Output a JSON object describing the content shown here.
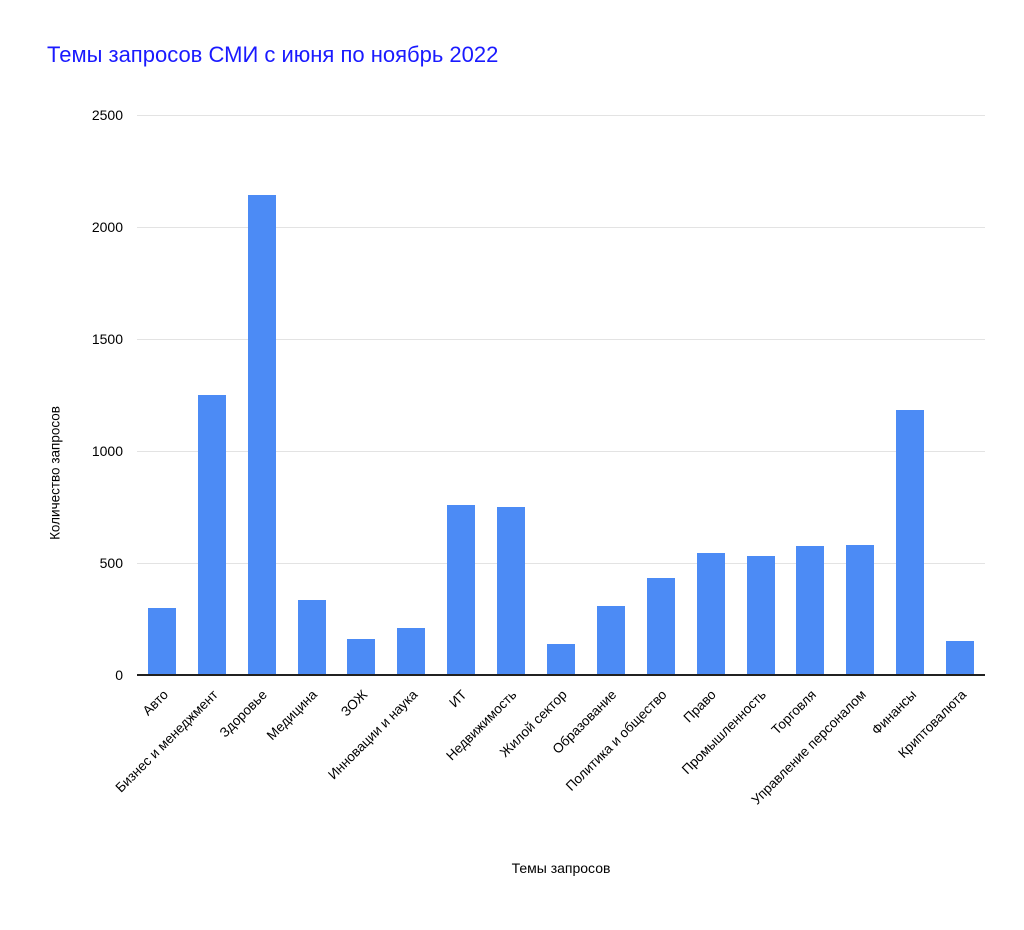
{
  "page": {
    "title": "Темы запросов СМИ с июня по ноябрь 2022"
  },
  "chart_data": {
    "type": "bar",
    "title": "Темы запросов СМИ с июня по ноябрь 2022",
    "xlabel": "Темы запросов",
    "ylabel": "Количество запросов",
    "categories": [
      "Авто",
      "Бизнес и менеджмент",
      "Здоровье",
      "Медицина",
      "ЗОЖ",
      "Инновации и наука",
      "ИТ",
      "Недвижимость",
      "Жилой сектор",
      "Образование",
      "Политика и общество",
      "Право",
      "Промышленность",
      "Торговля",
      "Управление персоналом",
      "Финансы",
      "Криптовалюта"
    ],
    "values": [
      300,
      1250,
      2145,
      335,
      160,
      210,
      760,
      750,
      140,
      310,
      435,
      545,
      530,
      575,
      580,
      1185,
      150
    ],
    "ylim": [
      0,
      2500
    ],
    "yticks": [
      0,
      500,
      1000,
      1500,
      2000,
      2500
    ],
    "grid": true,
    "legend": "none",
    "bar_color": "#4c8bf5",
    "title_color": "#1a1aff"
  }
}
